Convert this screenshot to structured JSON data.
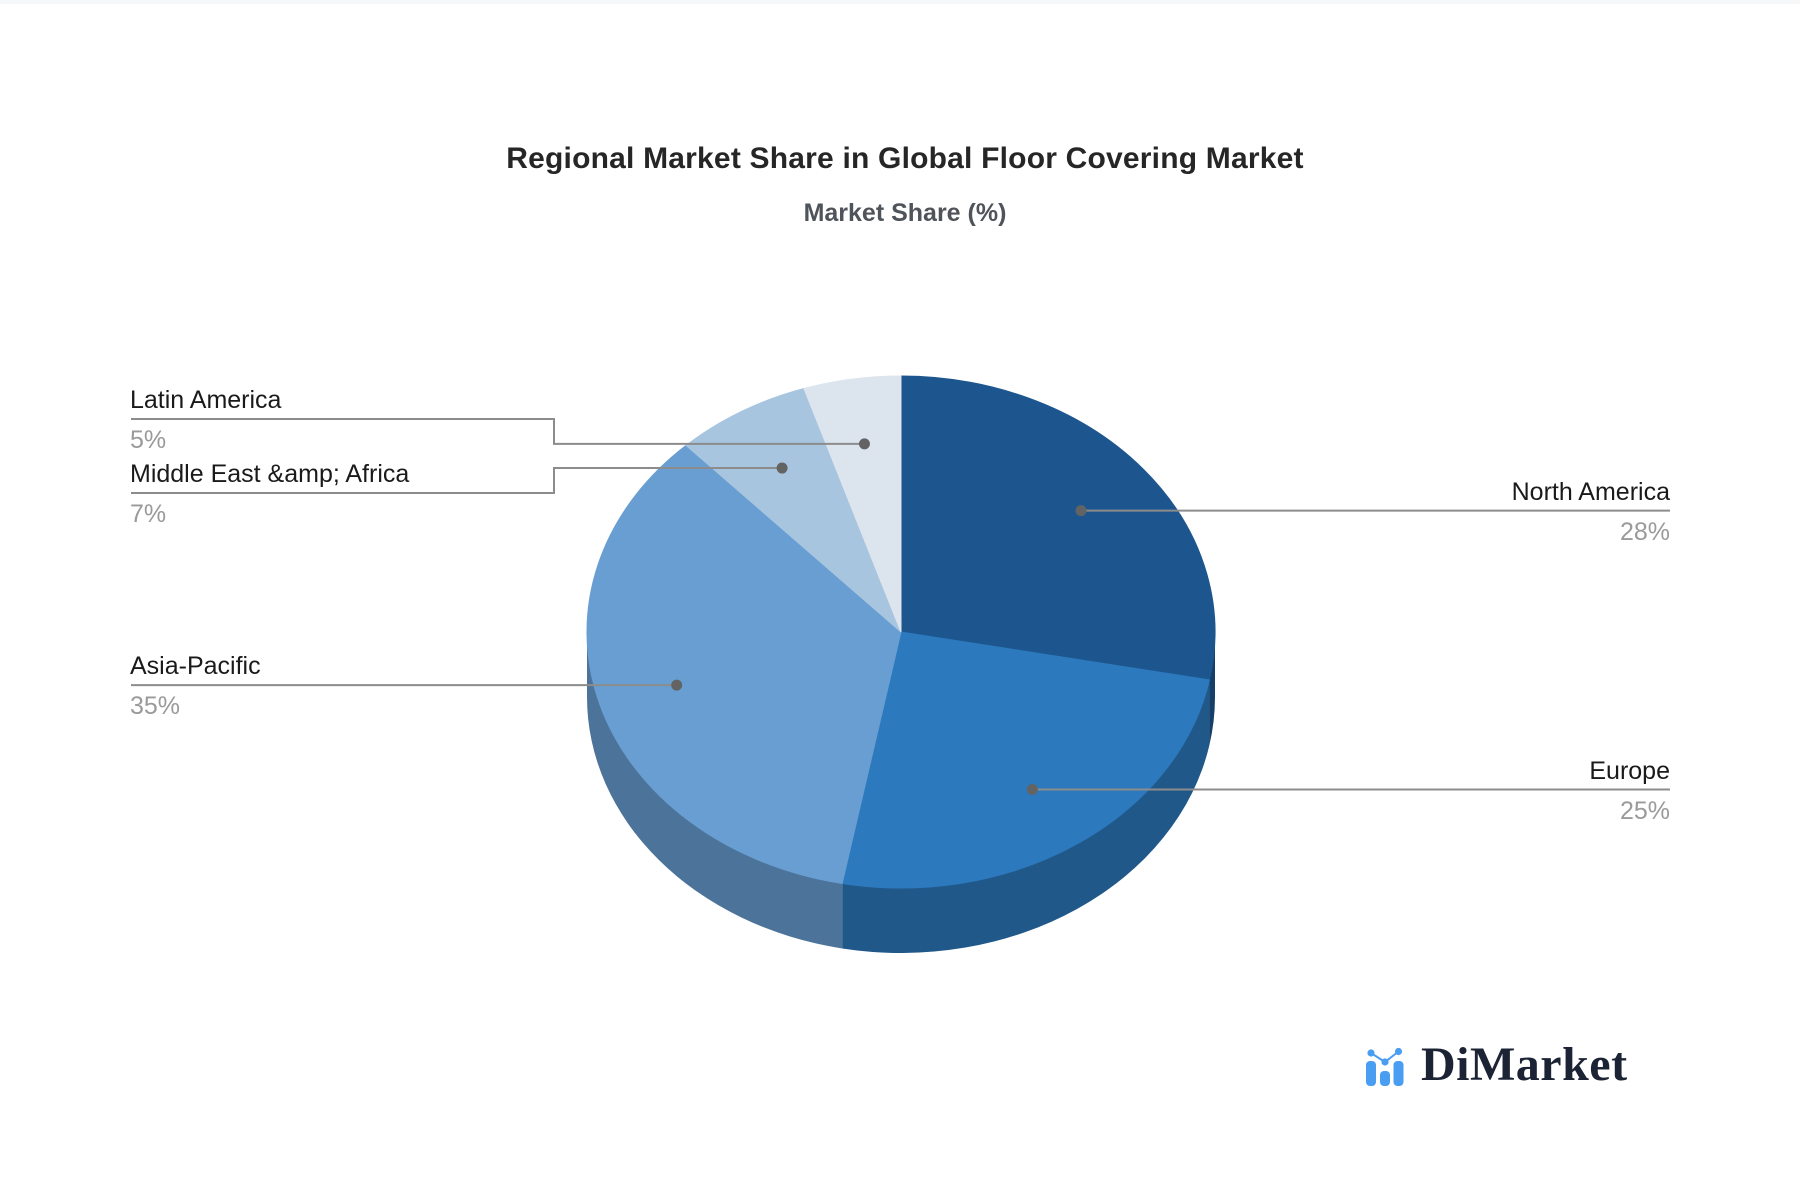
{
  "page": {
    "background": "#ffffff",
    "top_border_color": "#f6f7f9"
  },
  "title": "Regional Market Share in Global Floor Covering Market",
  "subtitle": "Market Share (%)",
  "chart_data": {
    "type": "pie",
    "title": "Regional Market Share in Global Floor Covering Market",
    "subtitle": "Market Share (%)",
    "unit": "%",
    "effect": "3d",
    "legend": "none",
    "label_style": "callout-name-above-line-percent-below",
    "start_angle_deg": 0,
    "direction": "clockwise",
    "categories": [
      "North America",
      "Europe",
      "Asia-Pacific",
      "Middle East &amp; Africa",
      "Latin America"
    ],
    "values": [
      28,
      25,
      35,
      7,
      5
    ],
    "slices": [
      {
        "label": "North America",
        "value": 28,
        "display": "28%",
        "color": "#1d568e"
      },
      {
        "label": "Europe",
        "value": 25,
        "display": "25%",
        "color": "#2d79bd"
      },
      {
        "label": "Asia-Pacific",
        "value": 35,
        "display": "35%",
        "color": "#689ed1"
      },
      {
        "label": "Middle East &amp; Africa",
        "value": 7,
        "display": "7%",
        "color": "#a8c5e0"
      },
      {
        "label": "Latin America",
        "value": 5,
        "display": "5%",
        "color": "#dce4ee"
      }
    ]
  },
  "logo": {
    "text": "DiMarket",
    "icon": "bar-line-chart-icon",
    "icon_color": "#4a9ef2",
    "text_color": "#1b2335"
  },
  "colors": {
    "leader_line": "#8c8c8c",
    "leader_dot": "#636363",
    "label_text": "#1a1a1a",
    "percent_text": "#9a9a9a"
  }
}
